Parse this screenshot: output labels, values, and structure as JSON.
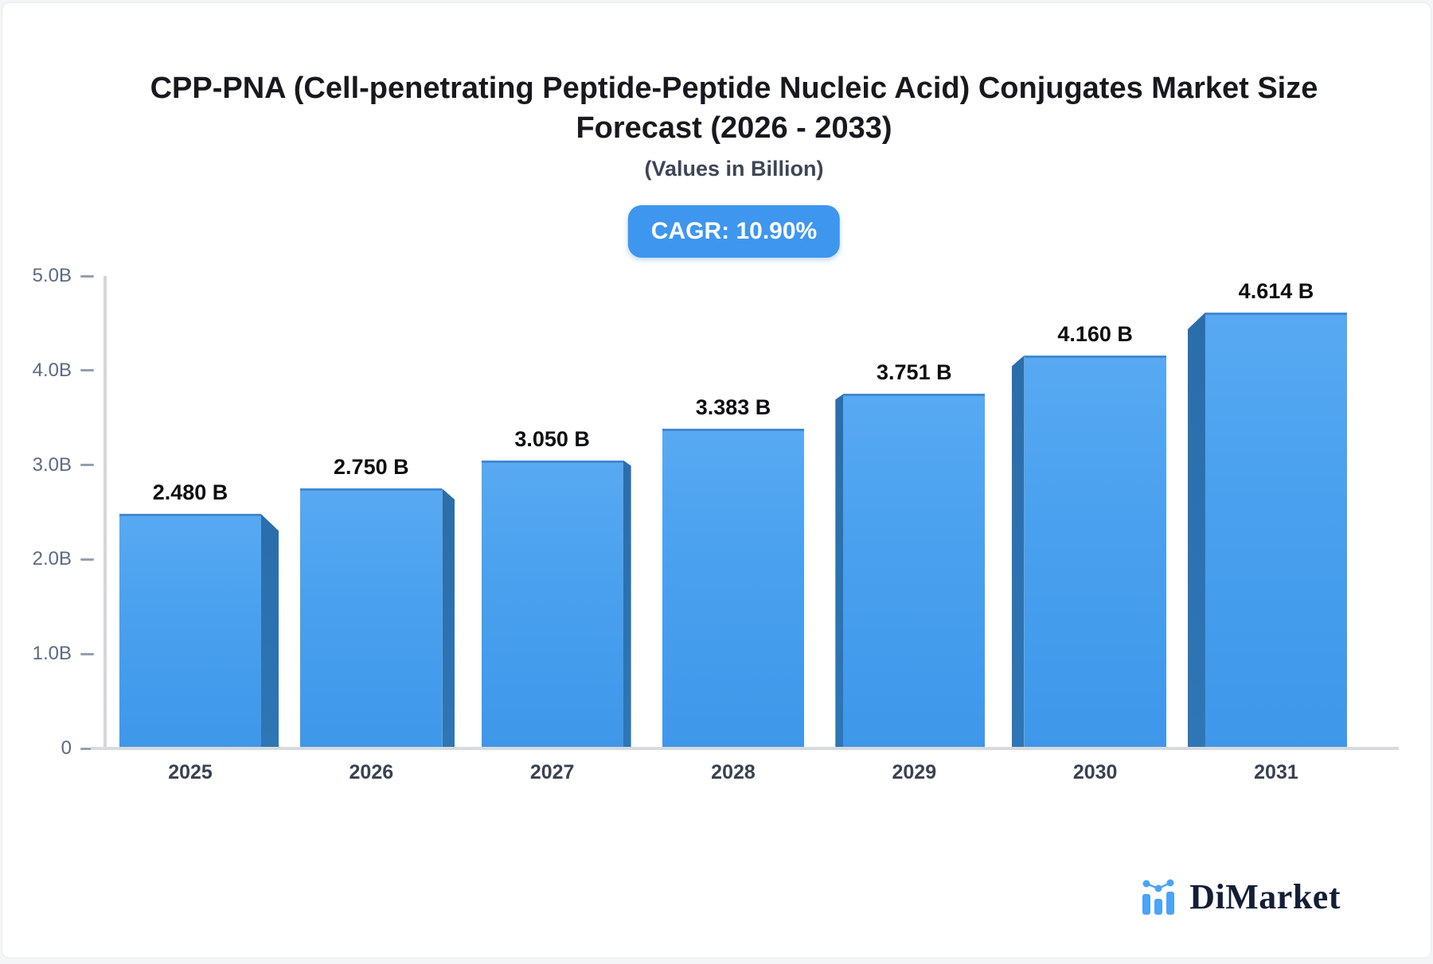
{
  "header": {
    "title_line1": "CPP-PNA (Cell-penetrating Peptide-Peptide Nucleic Acid) Conjugates Market Size",
    "title_line2": "Forecast (2026 - 2033)",
    "subtitle": "(Values in Billion)",
    "cagr_badge": "CAGR: 10.90%"
  },
  "chart_data": {
    "type": "bar",
    "title": "CPP-PNA (Cell-penetrating Peptide-Peptide Nucleic Acid) Conjugates Market Size Forecast (2026 - 2033)",
    "subtitle": "(Values in Billion)",
    "unit": "Billion",
    "cagr_percent": 10.9,
    "categories": [
      "2025",
      "2026",
      "2027",
      "2028",
      "2029",
      "2030",
      "2031"
    ],
    "values": [
      2.48,
      2.75,
      3.05,
      3.383,
      3.751,
      4.16,
      4.614
    ],
    "value_labels": [
      "2.480 B",
      "2.750 B",
      "3.050 B",
      "3.383 B",
      "3.751 B",
      "4.160 B",
      "4.614 B"
    ],
    "ylim": [
      0,
      5
    ],
    "y_ticks": [
      {
        "value": 5,
        "label": "5.0B"
      },
      {
        "value": 4,
        "label": "4.0B"
      },
      {
        "value": 3,
        "label": "3.0B"
      },
      {
        "value": 2,
        "label": "2.0B"
      },
      {
        "value": 1,
        "label": "1.0B"
      },
      {
        "value": 0,
        "label": "0"
      }
    ],
    "grid": false,
    "legend": false,
    "bar_color": "#459aec",
    "bar_side_color": "#2d72b0",
    "style": "3d-extruded-bars"
  },
  "logo": {
    "brand": "DiMarket",
    "icon": "bar-chart-dots-icon",
    "icon_color": "#4da3f7"
  },
  "colors": {
    "accent_blue": "#3e96ee",
    "title_text": "#17191e",
    "axis_line": "#d3d6dc",
    "tick_text": "#5c6a82",
    "category_text": "#3a4150",
    "background": "#ffffff"
  }
}
